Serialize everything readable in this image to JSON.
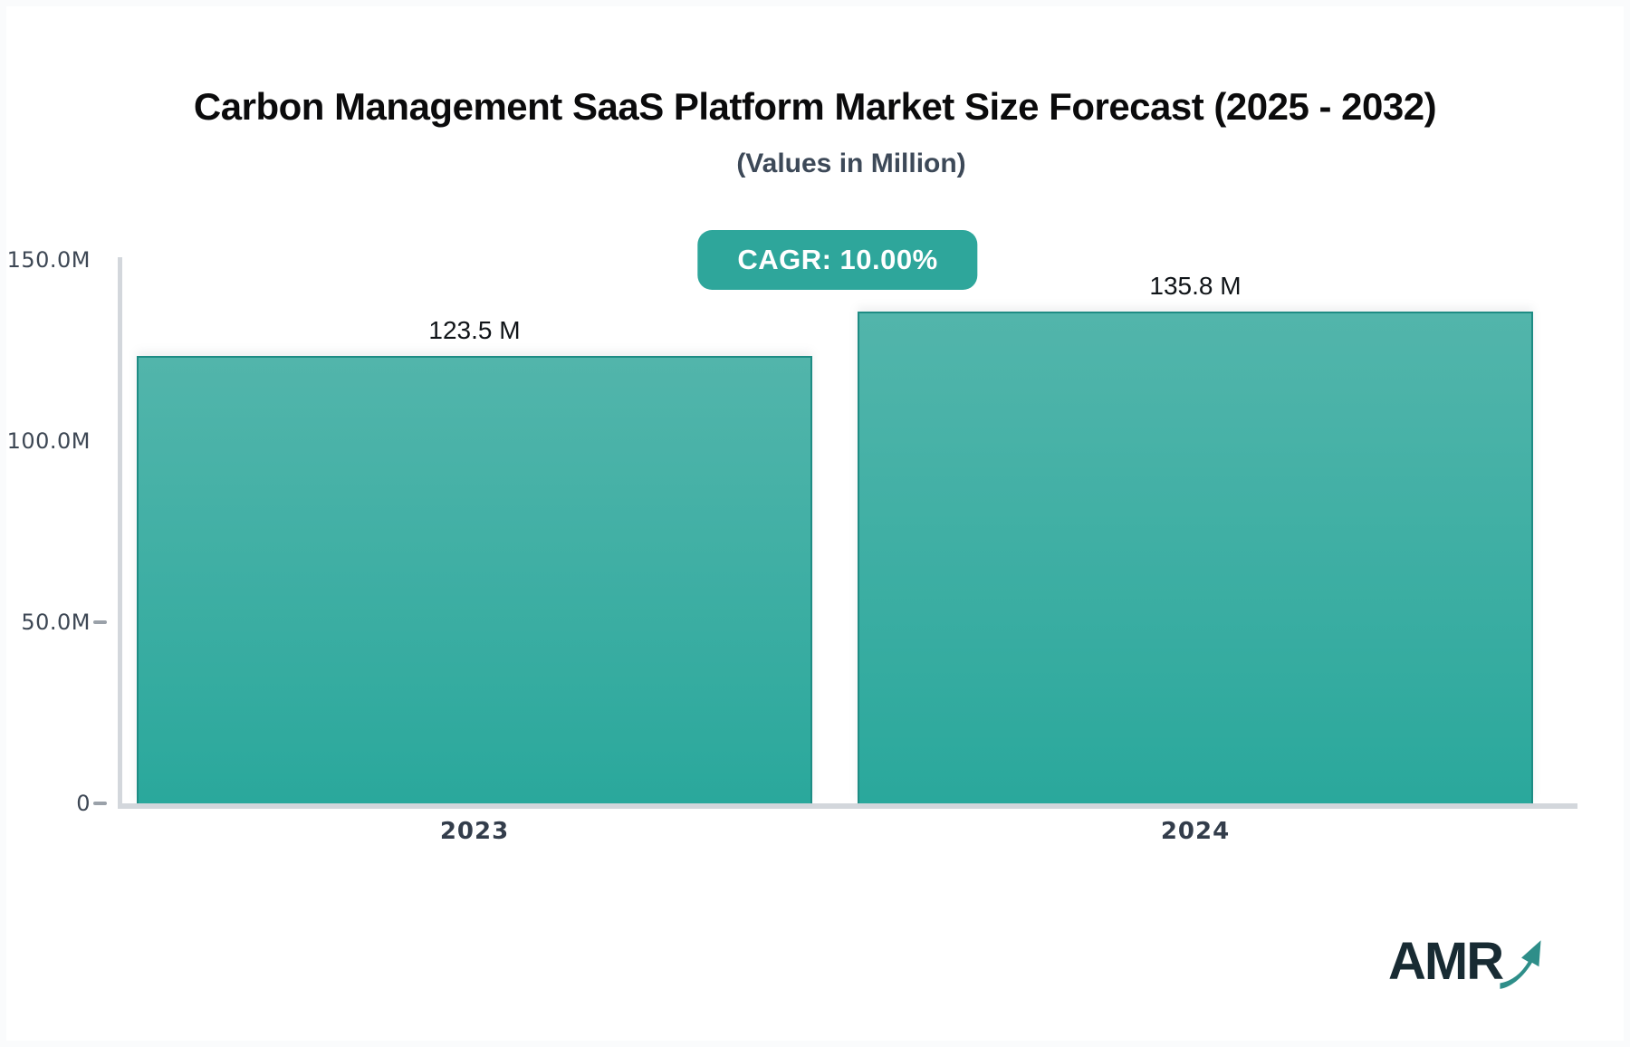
{
  "header": {
    "title": "Carbon Management SaaS Platform Market Size Forecast (2025 - 2032)",
    "subtitle": "(Values in Million)",
    "cagr_label": "CAGR: 10.00%"
  },
  "chart_data": {
    "type": "bar",
    "title": "Carbon Management SaaS Platform Market Size Forecast (2025 - 2032)",
    "subtitle": "(Values in Million)",
    "cagr_percent": 10.0,
    "unit": "Million",
    "categories": [
      "2023",
      "2024"
    ],
    "values": [
      123.5,
      135.8
    ],
    "value_labels": [
      "123.5 M",
      "135.8 M"
    ],
    "ylim": [
      0,
      150
    ],
    "ytick_labels": [
      "150.0M",
      "100.0M",
      "50.0M",
      "0"
    ],
    "ytick_values": [
      150,
      100,
      50,
      0
    ],
    "grid": false,
    "legend": "none"
  },
  "colors": {
    "title": "#0b0b0c",
    "subtitle": "#3d4958",
    "badge_bg": "#2ea69b",
    "badge_text": "#ffffff",
    "bar_top": "#52b5ab",
    "bar_bottom": "#2aa89c",
    "bar_border": "#1e8c84",
    "axis_line": "#d3d7dc",
    "tick_dash": "#9aa1a9",
    "tick_label": "#3d4754",
    "x_label": "#333d4b",
    "value_label": "#101418",
    "logo_text": "#182b33",
    "logo_arrow": "#2e8e89"
  },
  "logo": {
    "text": "AMR"
  }
}
